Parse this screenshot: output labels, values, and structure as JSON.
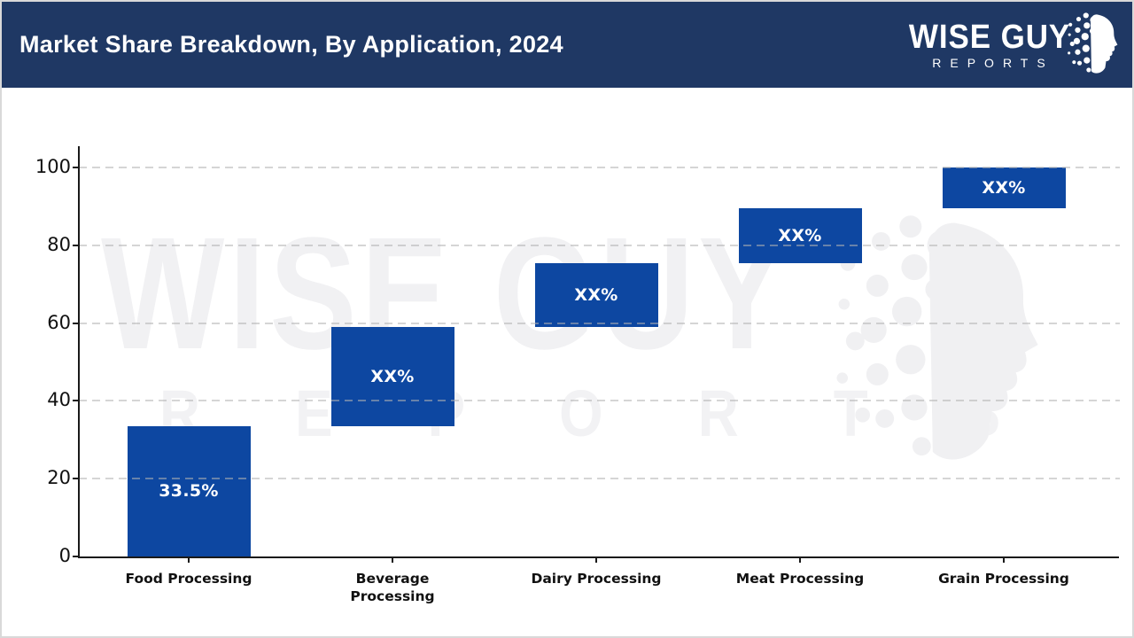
{
  "header": {
    "title": "Market Share Breakdown, By Application, 2024",
    "background_color": "#1f3864",
    "logo": {
      "line1": "WISE GUY",
      "line2": "REPORTS"
    }
  },
  "watermark": {
    "line1": "WISE GUY",
    "line2": "R E P O R T S"
  },
  "chart_data": {
    "type": "bar",
    "subtype": "waterfall",
    "title": "Market Share Breakdown, By Application, 2024",
    "xlabel": "",
    "ylabel": "",
    "ylim": [
      0,
      100
    ],
    "yticks": [
      0,
      20,
      40,
      60,
      80,
      100
    ],
    "grid": true,
    "grid_style": "dashed",
    "bar_color": "#0d47a1",
    "value_label_color": "#ffffff",
    "categories": [
      "Food Processing",
      "Beverage\nProcessing",
      "Dairy Processing",
      "Meat Processing",
      "Grain Processing"
    ],
    "segments": [
      {
        "category": "Food Processing",
        "start": 0,
        "end": 33.5,
        "value": 33.5,
        "label": "33.5%"
      },
      {
        "category": "Beverage Processing",
        "start": 33.5,
        "end": 59,
        "value": 25.5,
        "label": "XX%"
      },
      {
        "category": "Dairy Processing",
        "start": 59,
        "end": 75.5,
        "value": 16.5,
        "label": "XX%"
      },
      {
        "category": "Meat Processing",
        "start": 75.5,
        "end": 89.5,
        "value": 14,
        "label": "XX%"
      },
      {
        "category": "Grain Processing",
        "start": 89.5,
        "end": 100,
        "value": 10.5,
        "label": "XX%"
      }
    ]
  }
}
